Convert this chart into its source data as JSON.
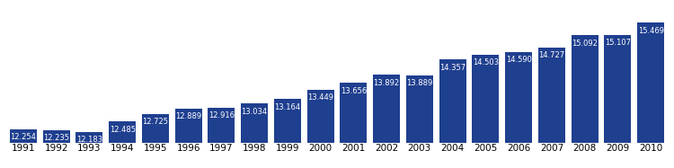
{
  "years": [
    1991,
    1992,
    1993,
    1994,
    1995,
    1996,
    1997,
    1998,
    1999,
    2000,
    2001,
    2002,
    2003,
    2004,
    2005,
    2006,
    2007,
    2008,
    2009,
    2010
  ],
  "values": [
    12.254,
    12.235,
    12.183,
    12.485,
    12.725,
    12.889,
    12.916,
    13.034,
    13.164,
    13.449,
    13.656,
    13.892,
    13.889,
    14.357,
    14.503,
    14.59,
    14.727,
    15.092,
    15.107,
    15.469
  ],
  "bar_color": "#1f3f8f",
  "label_color": "#ffffff",
  "label_fontsize": 6.0,
  "tick_fontsize": 7.5,
  "background_color": "#ffffff",
  "ylim_min": 11.85,
  "ylim_max": 16.05,
  "bar_width": 0.82
}
